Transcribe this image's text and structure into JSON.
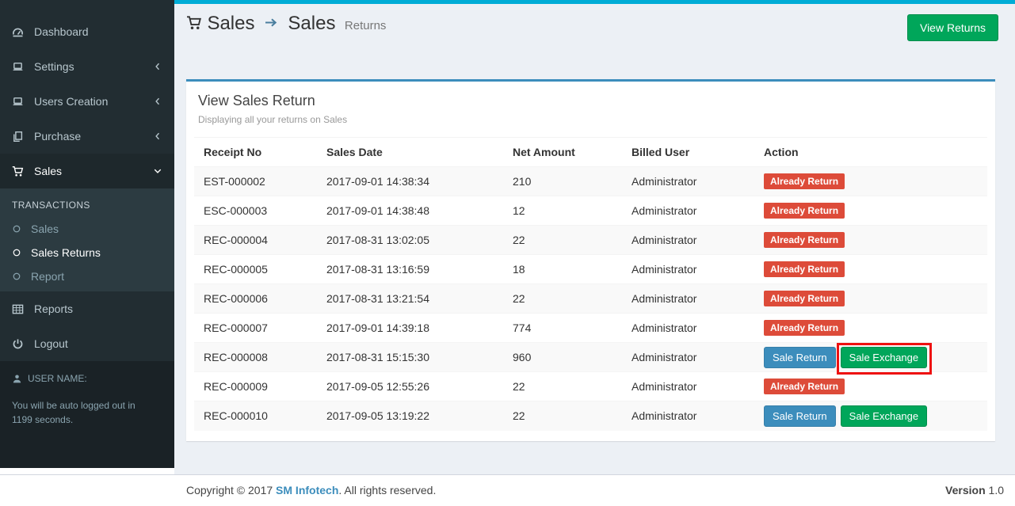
{
  "sidebar": {
    "section_header": "TRANSACTIONS",
    "items": [
      {
        "label": "Dashboard",
        "icon": "dashboard-icon"
      },
      {
        "label": "Settings",
        "icon": "laptop-icon",
        "chevron": "left"
      },
      {
        "label": "Users Creation",
        "icon": "laptop-icon",
        "chevron": "left"
      },
      {
        "label": "Purchase",
        "icon": "copy-icon",
        "chevron": "left"
      },
      {
        "label": "Sales",
        "icon": "cart-icon",
        "chevron": "down",
        "active": true
      }
    ],
    "submenu_items": [
      {
        "label": "Sales",
        "icon": "circle-icon"
      },
      {
        "label": "Sales Returns",
        "icon": "circle-icon",
        "active": true
      },
      {
        "label": "Report",
        "icon": "circle-icon"
      }
    ],
    "items_bottom": [
      {
        "label": "Reports",
        "icon": "table-icon"
      },
      {
        "label": "Logout",
        "icon": "power-icon"
      }
    ],
    "user_panel": {
      "label": "USER NAME:",
      "icon": "user-icon",
      "note": "You will be auto logged out in 1199 seconds."
    }
  },
  "header": {
    "icon": "cart-icon",
    "title": "Sales",
    "subtitle": "Sales",
    "subtitle_small": "Returns",
    "view_returns_button": "View Returns"
  },
  "card": {
    "title": "View Sales Return",
    "subtitle": "Displaying all your returns on Sales",
    "table": {
      "columns": [
        "Receipt No",
        "Sales Date",
        "Net Amount",
        "Billed User",
        "Action"
      ],
      "rows": [
        {
          "receipt": "EST-000002",
          "date": "2017-09-01 14:38:34",
          "amount": "210",
          "user": "Administrator",
          "actions": [
            {
              "label": "Already Return",
              "style": "danger"
            }
          ]
        },
        {
          "receipt": "ESC-000003",
          "date": "2017-09-01 14:38:48",
          "amount": "12",
          "user": "Administrator",
          "actions": [
            {
              "label": "Already Return",
              "style": "danger"
            }
          ]
        },
        {
          "receipt": "REC-000004",
          "date": "2017-08-31 13:02:05",
          "amount": "22",
          "user": "Administrator",
          "actions": [
            {
              "label": "Already Return",
              "style": "danger"
            }
          ]
        },
        {
          "receipt": "REC-000005",
          "date": "2017-08-31 13:16:59",
          "amount": "18",
          "user": "Administrator",
          "actions": [
            {
              "label": "Already Return",
              "style": "danger"
            }
          ]
        },
        {
          "receipt": "REC-000006",
          "date": "2017-08-31 13:21:54",
          "amount": "22",
          "user": "Administrator",
          "actions": [
            {
              "label": "Already Return",
              "style": "danger"
            }
          ]
        },
        {
          "receipt": "REC-000007",
          "date": "2017-09-01 14:39:18",
          "amount": "774",
          "user": "Administrator",
          "actions": [
            {
              "label": "Already Return",
              "style": "danger"
            }
          ]
        },
        {
          "receipt": "REC-000008",
          "date": "2017-08-31 15:15:30",
          "amount": "960",
          "user": "Administrator",
          "actions": [
            {
              "label": "Sale Return",
              "style": "primary"
            },
            {
              "label": "Sale Exchange",
              "style": "success",
              "highlighted": true
            }
          ]
        },
        {
          "receipt": "REC-000009",
          "date": "2017-09-05 12:55:26",
          "amount": "22",
          "user": "Administrator",
          "actions": [
            {
              "label": "Already Return",
              "style": "danger"
            }
          ]
        },
        {
          "receipt": "REC-000010",
          "date": "2017-09-05 13:19:22",
          "amount": "22",
          "user": "Administrator",
          "actions": [
            {
              "label": "Sale Return",
              "style": "primary"
            },
            {
              "label": "Sale Exchange",
              "style": "success"
            }
          ]
        }
      ]
    }
  },
  "footer": {
    "copyright_prefix": "Copyright © 2017 ",
    "brand": "SM Infotech",
    "copyright_suffix": ". All rights reserved.",
    "version_label": "Version",
    "version_value": "1.0"
  },
  "colors": {
    "top_strip": "#00acd6",
    "accent_blue": "#3c8dbc",
    "success_green": "#00a65a",
    "danger_red": "#dd4b39",
    "sidebar_bg": "#222d32",
    "sidebar_active_bg": "#1e282c",
    "content_bg": "#ecf0f5",
    "annotation_red": "#ee1111"
  }
}
